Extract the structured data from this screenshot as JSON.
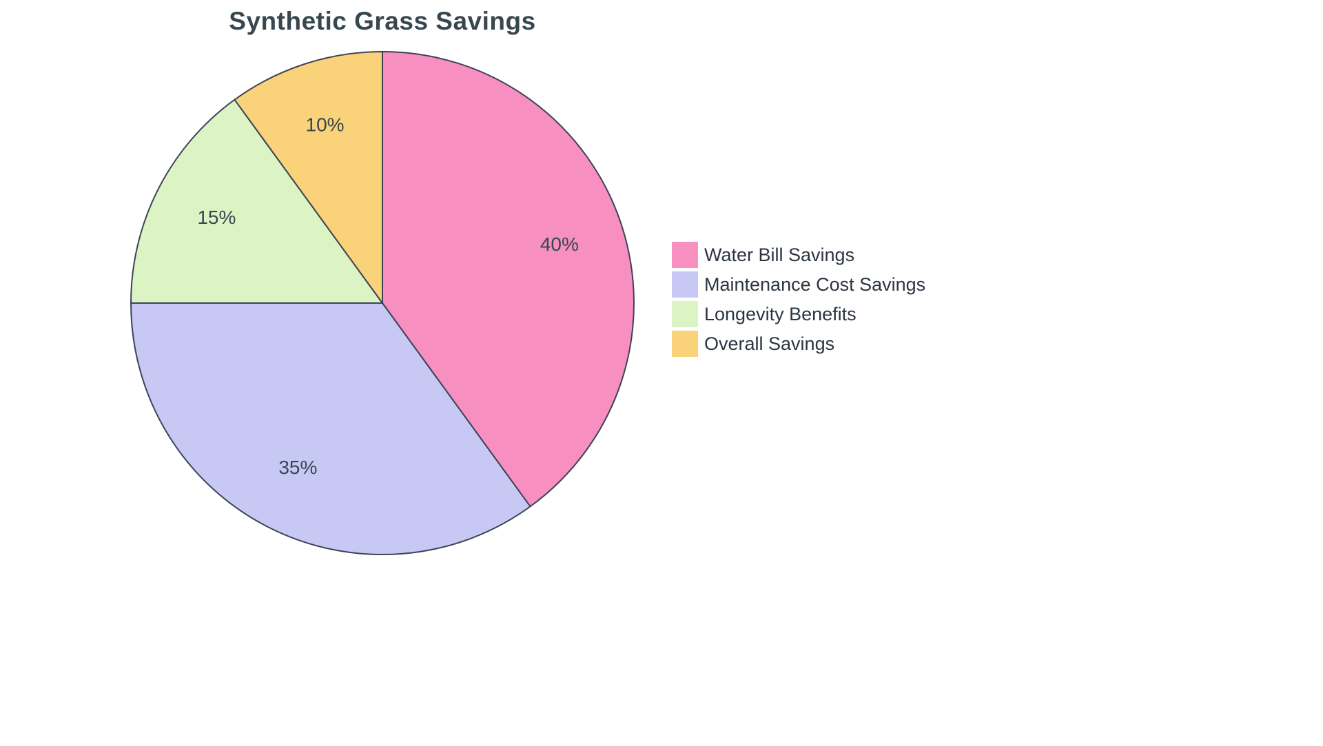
{
  "chart_data": {
    "type": "pie",
    "title": "Synthetic Grass Savings",
    "slices": [
      {
        "label": "Water Bill Savings",
        "value": 40,
        "display": "40%",
        "color": "#F78FC1"
      },
      {
        "label": "Maintenance Cost Savings",
        "value": 35,
        "display": "35%",
        "color": "#C7C8F4"
      },
      {
        "label": "Longevity Benefits",
        "value": 15,
        "display": "15%",
        "color": "#DCF4C4"
      },
      {
        "label": "Overall Savings",
        "value": 10,
        "display": "10%",
        "color": "#FAD279"
      }
    ],
    "start_angle": "top",
    "direction": "clockwise",
    "legend_position": "right",
    "stroke_color": "#3C4356",
    "stroke_width": 2,
    "label_color": "#37474F",
    "title_color": "#37474F",
    "legend_text_color": "#2B3440",
    "background": "#FFFFFF"
  }
}
